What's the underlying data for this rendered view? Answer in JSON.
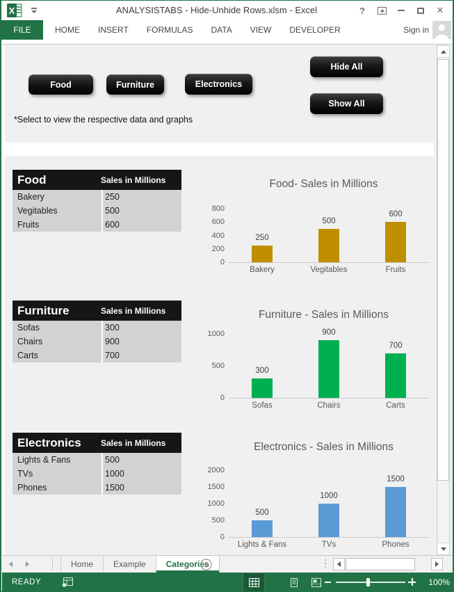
{
  "window": {
    "title": "ANALYSISTABS - Hide-Unhide Rows.xlsm - Excel",
    "sign_in": "Sign in"
  },
  "icons": {
    "help": "?",
    "close": "✕"
  },
  "ribbon": {
    "file_tab": "FILE",
    "tabs": [
      "HOME",
      "INSERT",
      "FORMULAS",
      "DATA",
      "VIEW",
      "DEVELOPER"
    ]
  },
  "controls": {
    "food": "Food",
    "furniture": "Furniture",
    "electronics": "Electronics",
    "hide_all": "Hide All",
    "show_all": "Show All",
    "note": "*Select to view the respective data and graphs"
  },
  "tables": [
    {
      "title": "Food",
      "value_header": "Sales in Millions",
      "rows": [
        {
          "label": "Bakery",
          "value": "250"
        },
        {
          "label": "Vegitables",
          "value": "500"
        },
        {
          "label": "Fruits",
          "value": "600"
        }
      ]
    },
    {
      "title": "Furniture",
      "value_header": "Sales in Millions",
      "rows": [
        {
          "label": "Sofas",
          "value": "300"
        },
        {
          "label": "Chairs",
          "value": "900"
        },
        {
          "label": "Carts",
          "value": "700"
        }
      ]
    },
    {
      "title": "Electronics",
      "value_header": "Sales in Millions",
      "rows": [
        {
          "label": "Lights & Fans",
          "value": "500"
        },
        {
          "label": "TVs",
          "value": "1000"
        },
        {
          "label": "Phones",
          "value": "1500"
        }
      ]
    }
  ],
  "chart_data": [
    {
      "type": "bar",
      "title": "Food- Sales in Millions",
      "categories": [
        "Bakery",
        "Vegitables",
        "Fruits"
      ],
      "values": [
        250,
        500,
        600
      ],
      "ylim": [
        0,
        800
      ],
      "yticks": [
        0,
        200,
        400,
        600,
        800
      ],
      "bar_color": "#BF8F00",
      "grid": false,
      "legend": "none",
      "data_labels": true
    },
    {
      "type": "bar",
      "title": "Furniture - Sales in Millions",
      "categories": [
        "Sofas",
        "Chairs",
        "Carts"
      ],
      "values": [
        300,
        900,
        700
      ],
      "ylim": [
        0,
        1000
      ],
      "yticks": [
        0,
        500,
        1000
      ],
      "bar_color": "#00B050",
      "grid": false,
      "legend": "none",
      "data_labels": true
    },
    {
      "type": "bar",
      "title": "Electronics - Sales in Millions",
      "categories": [
        "Lights & Fans",
        "TVs",
        "Phones"
      ],
      "values": [
        500,
        1000,
        1500
      ],
      "ylim": [
        0,
        2000
      ],
      "yticks": [
        0,
        500,
        1000,
        1500,
        2000
      ],
      "bar_color": "#5B9BD5",
      "grid": false,
      "legend": "none",
      "data_labels": true
    }
  ],
  "sheet_tabs": {
    "tabs": [
      "Home",
      "Example",
      "Categories"
    ],
    "active": "Categories"
  },
  "status_bar": {
    "mode": "READY",
    "zoom_level": "100%"
  },
  "colors": {
    "excel_green": "#217346",
    "table_header_bg": "#161616",
    "table_row_bg": "#d2d2d2"
  }
}
